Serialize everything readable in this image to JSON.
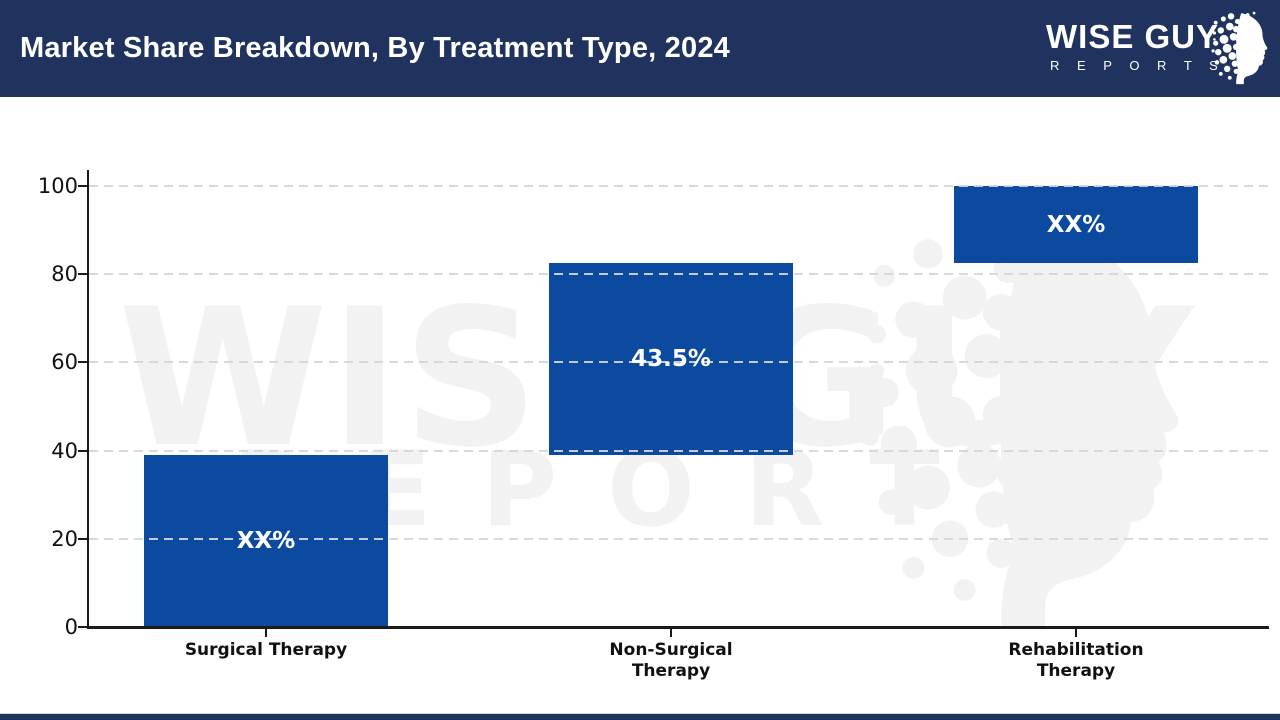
{
  "header": {
    "bg_color": "#20335f"
  },
  "logo": {
    "wordmark": "WISE GUY",
    "subtext": "R E P O R T S"
  },
  "watermark": {
    "wordmark": "WISE GUY",
    "subtext": "REPORTS"
  },
  "chart_data": {
    "type": "bar",
    "variant": "floating-waterfall",
    "title": "Market Share Breakdown, By Treatment Type, 2024",
    "categories": [
      "Surgical Therapy",
      "Non-Surgical\nTherapy",
      "Rehabilitation\nTherapy"
    ],
    "segments": [
      {
        "category": "Surgical Therapy",
        "from": 0,
        "to": 39,
        "label": "XX%"
      },
      {
        "category": "Non-Surgical Therapy",
        "from": 39,
        "to": 82.5,
        "label": "43.5%"
      },
      {
        "category": "Rehabilitation Therapy",
        "from": 82.5,
        "to": 100,
        "label": "XX%"
      }
    ],
    "yticks": [
      0,
      20,
      40,
      60,
      80,
      100
    ],
    "ylim": [
      0,
      100
    ],
    "bar_color": "#0c4aa0",
    "label_color": "#ffffff",
    "grid": {
      "horizontal": true,
      "style": "dashed",
      "color": "#d6d6d6",
      "above_bars": true
    },
    "legend": "none"
  },
  "footer": {
    "bg_color": "#20335f"
  }
}
